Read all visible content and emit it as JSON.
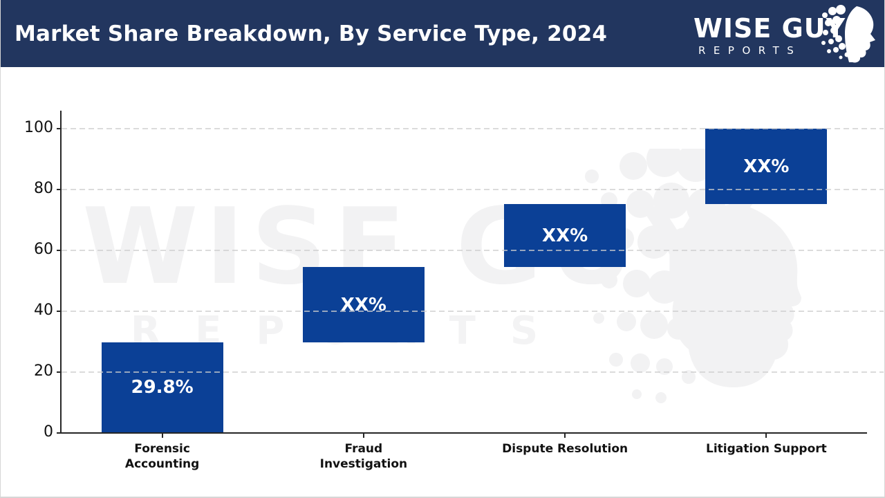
{
  "header": {
    "title": "Market Share Breakdown, By Service Type, 2024",
    "logo": {
      "name": "WISE GUY",
      "sub": "REPORTS"
    },
    "bg_color": "#22365f"
  },
  "watermark": {
    "line1": "WISE GUY",
    "line2": "REPORTS"
  },
  "chart_data": {
    "type": "bar",
    "subtype": "waterfall",
    "title": "Market Share Breakdown, By Service Type, 2024",
    "categories": [
      "Forensic\nAccounting",
      "Fraud\nInvestigation",
      "Dispute Resolution",
      "Litigation Support"
    ],
    "segments": [
      {
        "category": "Forensic Accounting",
        "start": 0,
        "end": 29.8,
        "label": "29.8%"
      },
      {
        "category": "Fraud Investigation",
        "start": 29.8,
        "end": 54.5,
        "label": "XX%"
      },
      {
        "category": "Dispute Resolution",
        "start": 54.5,
        "end": 75.2,
        "label": "XX%"
      },
      {
        "category": "Litigation Support",
        "start": 75.2,
        "end": 100,
        "label": "XX%"
      }
    ],
    "ylim": [
      0,
      100
    ],
    "yticks": [
      0,
      20,
      40,
      60,
      80,
      100
    ],
    "xlabel": "",
    "ylabel": "",
    "grid": {
      "horizontal": true,
      "style": "dashed",
      "color": "#d9d9d9"
    },
    "legend": null,
    "colors": {
      "bar": "#0b4096",
      "bar_label": "#ffffff",
      "axis": "#262626",
      "tick_label": "#111111"
    }
  }
}
